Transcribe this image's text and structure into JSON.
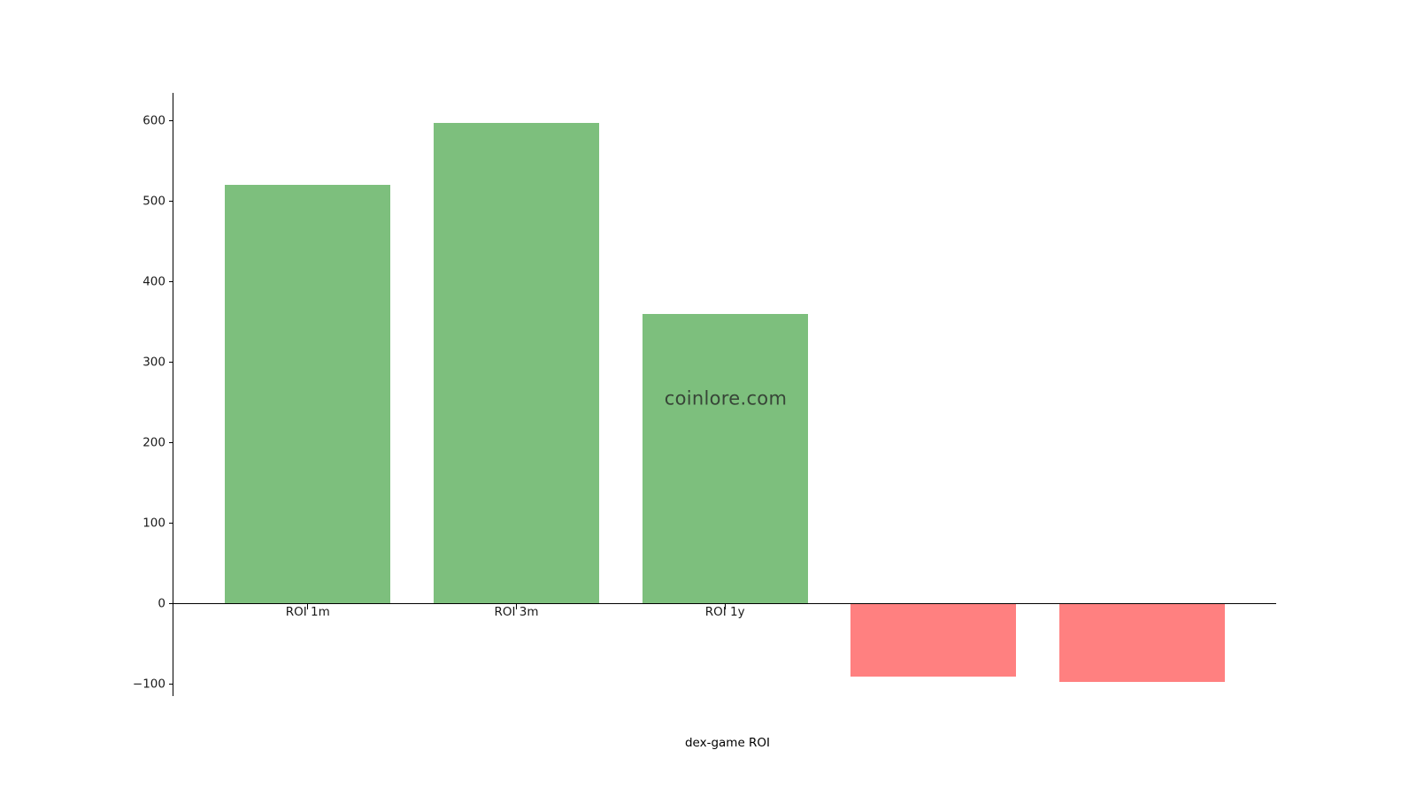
{
  "chart_data": {
    "type": "bar",
    "title": "",
    "xlabel": "dex-game ROI",
    "ylabel": "",
    "categories": [
      "ROI 1m",
      "ROI 3m",
      "ROI 1y",
      "",
      ""
    ],
    "values": [
      520,
      597,
      360,
      -90,
      -96
    ],
    "yticks": [
      600,
      500,
      400,
      300,
      200,
      100,
      0,
      -100
    ],
    "ylim": [
      -115,
      635
    ],
    "grid": false,
    "legend": false,
    "bar_colors": {
      "positive": "#7dbf7d",
      "negative": "#ff8080"
    },
    "axis_color": "#000000",
    "watermark": "coinlore.com"
  }
}
